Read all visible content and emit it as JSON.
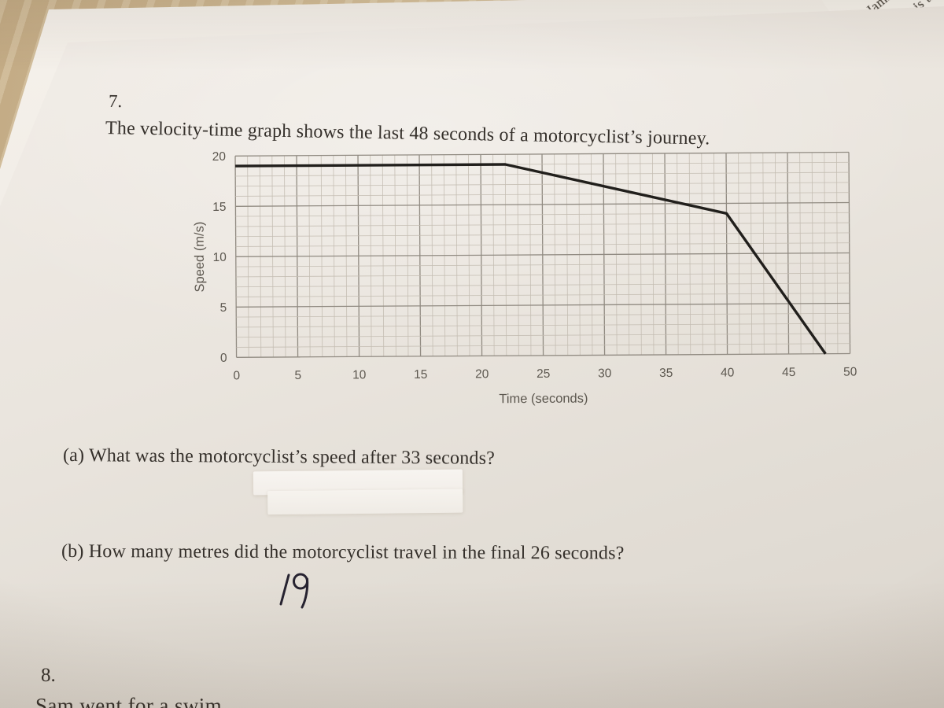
{
  "photo": {
    "desk_color": "#c3ab85",
    "back_sheet_color": "#f5f1eb",
    "paper_light": "#f1ece6",
    "paper_dark": "#dcd6ce",
    "ink_color": "#35302b",
    "curve_color": "#211f1c",
    "grid_minor_color": "#c4bdb2",
    "grid_major_color": "#918b82",
    "axis_text_color": "#5c574f",
    "hand_ink_color": "#262230"
  },
  "background_sheet": {
    "line1": "Jamie t",
    "line2": "He      is the"
  },
  "worksheet": {
    "q7_number": "7.",
    "q7_text": "The velocity-time graph shows the last 48 seconds of a motorcyclist’s journey.",
    "part_a": "(a) What was the motorcyclist’s speed after 33 seconds?",
    "part_b": "(b) How many metres did the motorcyclist travel in the final 26 seconds?",
    "handwritten_answer": "19",
    "q8_number": "8.",
    "q8_text": "Sam went for a swim"
  },
  "chart_data": {
    "type": "line",
    "title": "",
    "xlabel": "Time (seconds)",
    "ylabel": "Speed (m/s)",
    "xlim": [
      0,
      50
    ],
    "ylim": [
      0,
      20
    ],
    "x_ticks": [
      0,
      5,
      10,
      15,
      20,
      25,
      30,
      35,
      40,
      45,
      50
    ],
    "y_ticks": [
      0,
      5,
      10,
      15,
      20
    ],
    "minor_step": 1,
    "major_step": 5,
    "grid": true,
    "legend": false,
    "points": [
      [
        0,
        19
      ],
      [
        22,
        19
      ],
      [
        40,
        14
      ],
      [
        48,
        0
      ]
    ]
  }
}
